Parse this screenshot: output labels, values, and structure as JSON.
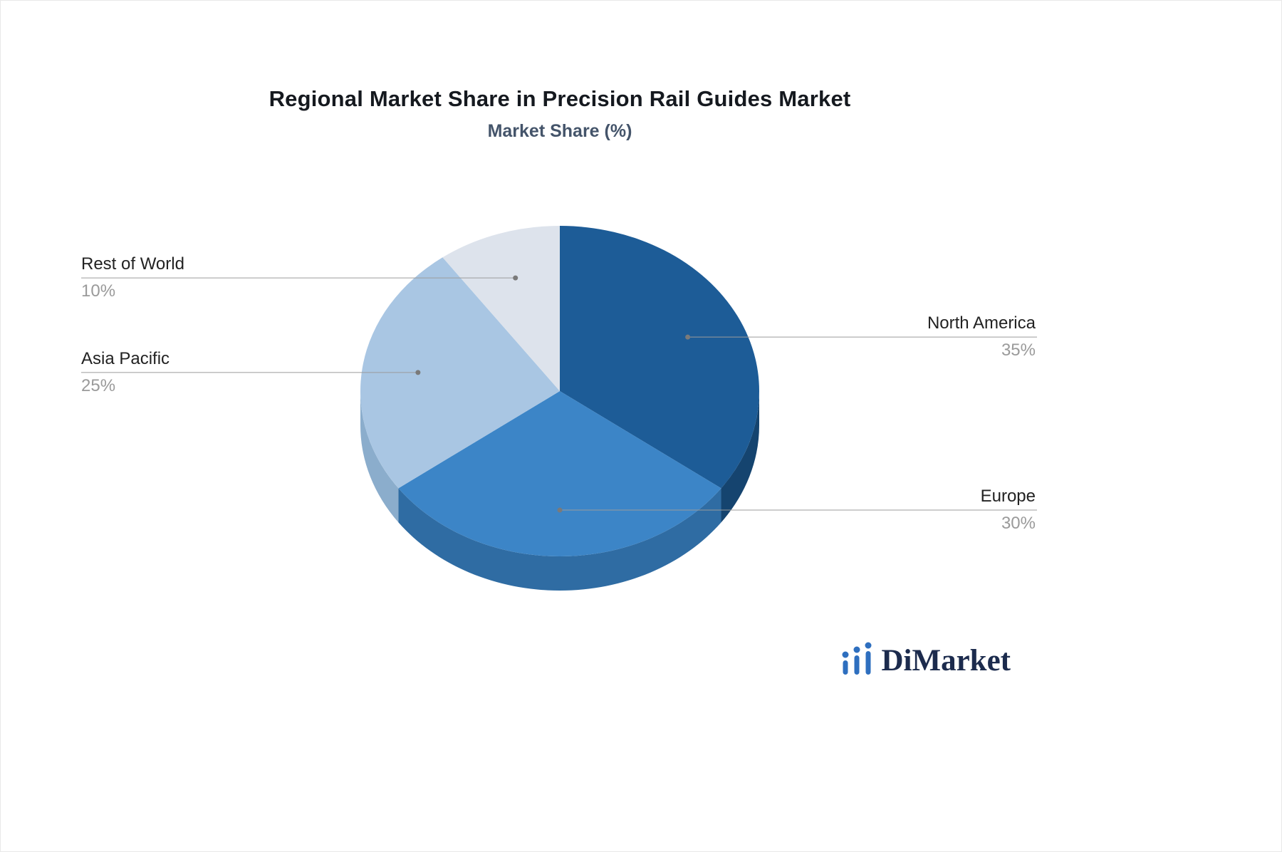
{
  "chart_data": {
    "type": "pie",
    "title": "Regional Market Share in Precision Rail Guides Market",
    "subtitle": "Market Share (%)",
    "legend_position": "none",
    "style": "3d-pie",
    "slices": [
      {
        "label": "North America",
        "value": 35,
        "pct_label": "35%",
        "color": "#1d5c97",
        "side_color": "#15446f"
      },
      {
        "label": "Europe",
        "value": 30,
        "pct_label": "30%",
        "color": "#3c85c7",
        "side_color": "#2f6ca3"
      },
      {
        "label": "Asia Pacific",
        "value": 25,
        "pct_label": "25%",
        "color": "#a9c6e3",
        "side_color": "#8badcc"
      },
      {
        "label": "Rest of World",
        "value": 10,
        "pct_label": "10%",
        "color": "#dde3ec",
        "side_color": "#c3ccd9"
      }
    ],
    "label_color": "#222222",
    "pct_color": "#9a9a9a",
    "leader_color": "#9b9b9b",
    "accent_blue": "#2e6fbf"
  },
  "logo": {
    "text": "DiMarket"
  }
}
